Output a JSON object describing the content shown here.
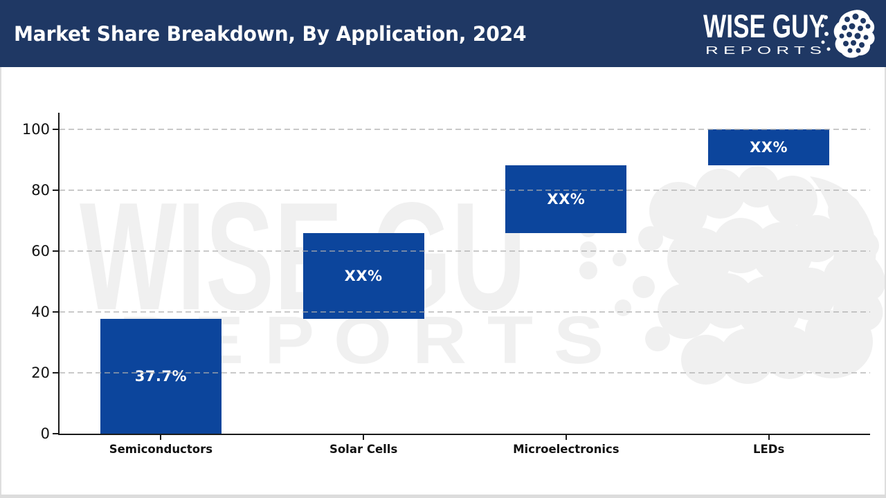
{
  "header": {
    "title": "Market Share Breakdown, By Application, 2024",
    "logo": {
      "brand_line1": "WISE GUY",
      "brand_line2": "R E P O R T S"
    }
  },
  "watermark": {
    "line1": "WISE GU",
    "line2": "R E P O R T S"
  },
  "chart_data": {
    "type": "bar",
    "subtype": "waterfall",
    "title": "Market Share Breakdown, By Application, 2024",
    "categories": [
      "Semiconductors",
      "Solar Cells",
      "Microelectronics",
      "LEDs"
    ],
    "segments": [
      {
        "category": "Semiconductors",
        "start": 0,
        "end": 37.7,
        "label": "37.7%"
      },
      {
        "category": "Solar Cells",
        "start": 37.7,
        "end": 65.9,
        "label": "XX%"
      },
      {
        "category": "Microelectronics",
        "start": 65.9,
        "end": 88.2,
        "label": "XX%"
      },
      {
        "category": "LEDs",
        "start": 88.2,
        "end": 100,
        "label": "XX%"
      }
    ],
    "ylim": [
      0,
      100
    ],
    "yticks": [
      0,
      20,
      40,
      60,
      80,
      100
    ],
    "xlabel": "",
    "ylabel": "",
    "grid": "horizontal-dashed",
    "legend": "none",
    "colors": {
      "bar": "#0c459c",
      "bar_label": "#ffffff",
      "axis": "#1a1a1a",
      "grid": "#acacac",
      "header_bg": "#1f3864",
      "header_text": "#ffffff",
      "watermark": "#f0f0f0"
    }
  }
}
